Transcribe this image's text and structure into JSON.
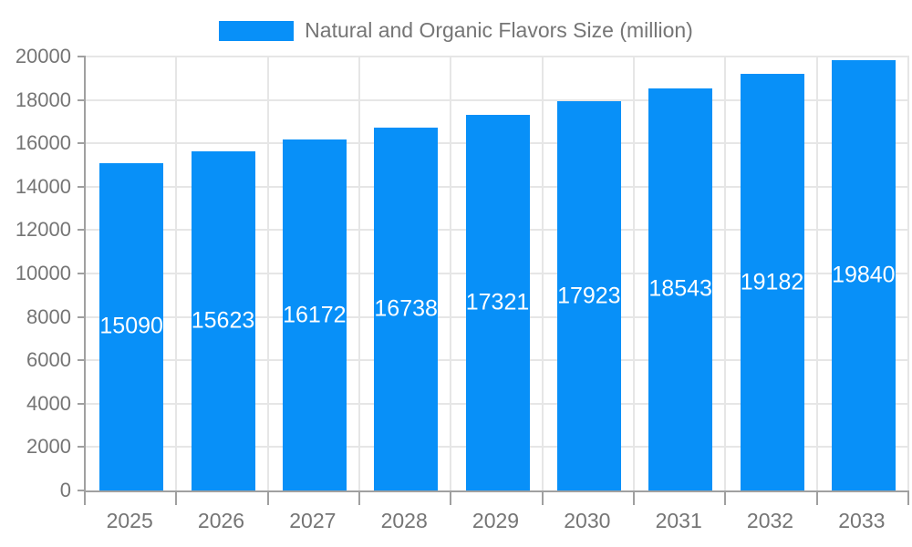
{
  "chart_data": {
    "type": "bar",
    "title": "Natural and Organic Flavors Size (million)",
    "series_name": "Natural and Organic Flavors Size (million)",
    "categories": [
      "2025",
      "2026",
      "2027",
      "2028",
      "2029",
      "2030",
      "2031",
      "2032",
      "2033"
    ],
    "values": [
      15090,
      15623,
      16172,
      16738,
      17321,
      17923,
      18543,
      19182,
      19840
    ],
    "xlabel": "",
    "ylabel": "",
    "ylim": [
      0,
      20000
    ],
    "yticks": [
      0,
      2000,
      4000,
      6000,
      8000,
      10000,
      12000,
      14000,
      16000,
      18000,
      20000
    ],
    "grid": true,
    "legend_position": "top-center",
    "bar_value_labels": "inside-center"
  },
  "colors": {
    "bar": "#0890f8",
    "axis_line": "#a0a0a0",
    "gridline": "#e6e6e6",
    "axis_text": "#757575",
    "bar_label_text": "#ffffff",
    "background": "#ffffff"
  }
}
